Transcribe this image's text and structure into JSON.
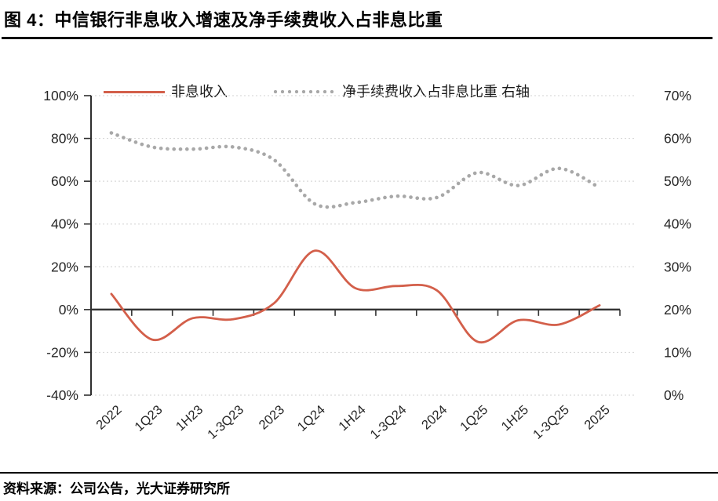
{
  "title": "图 4：中信银行非息收入增速及净手续费收入占非息比重",
  "source": "资料来源：公司公告，光大证券研究所",
  "colors": {
    "line_red": "#d35f4a",
    "line_gray": "#a8a8a8",
    "grid": "#d9d9d9",
    "axis": "#2f2f2f",
    "tick_label": "#262626"
  },
  "chart_data": {
    "type": "line",
    "title": "中信银行非息收入增速及净手续费收入占非息比重",
    "categories": [
      "2022",
      "1Q23",
      "1H23",
      "1-3Q23",
      "2023",
      "1Q24",
      "1H24",
      "1-3Q24",
      "2024",
      "1Q25",
      "1H25",
      "1-3Q25",
      "2025"
    ],
    "series": [
      {
        "name": "非息收入",
        "axis": "left",
        "style": "solid",
        "color": "#d35f4a",
        "values": [
          7.3,
          -14,
          -4,
          -4.5,
          3,
          27.5,
          10,
          11,
          9,
          -15,
          -5,
          -7,
          2
        ]
      },
      {
        "name": "净手续费收入占非息比重 右轴",
        "axis": "right",
        "style": "dotted",
        "color": "#a8a8a8",
        "values": [
          61.3,
          58,
          57.5,
          58,
          55,
          44.7,
          45,
          46.5,
          46.2,
          52,
          49,
          53,
          48.5
        ]
      }
    ],
    "left_axis": {
      "min": -40,
      "max": 100,
      "ticks": [
        "100%",
        "80%",
        "60%",
        "40%",
        "20%",
        "0%",
        "-20%",
        "-40%"
      ],
      "tick_values": [
        100,
        80,
        60,
        40,
        20,
        0,
        -20,
        -40
      ]
    },
    "right_axis": {
      "min": 0,
      "max": 70,
      "ticks": [
        "70%",
        "60%",
        "50%",
        "40%",
        "30%",
        "20%",
        "10%",
        "0%"
      ],
      "tick_values": [
        70,
        60,
        50,
        40,
        30,
        20,
        10,
        0
      ]
    },
    "grid": "dashed-horizontal",
    "legend_position": "top"
  }
}
